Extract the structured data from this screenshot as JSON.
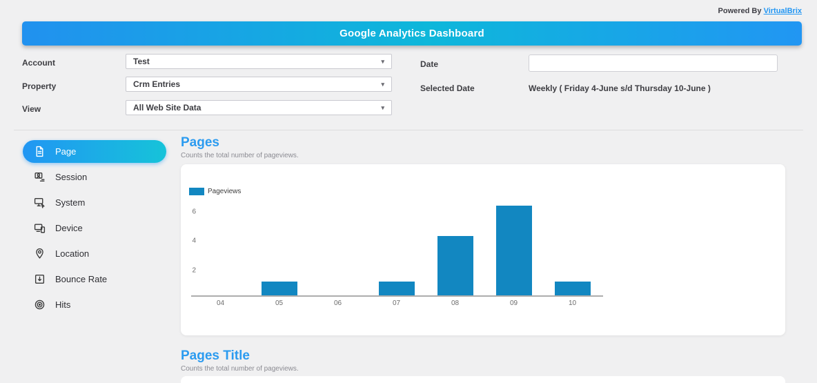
{
  "powered_by": {
    "prefix": "Powered By ",
    "brand": "VirtualBrix"
  },
  "header": {
    "title": "Google Analytics Dashboard"
  },
  "filters": {
    "account": {
      "label": "Account",
      "value": "Test"
    },
    "property": {
      "label": "Property",
      "value": "Crm Entries"
    },
    "view": {
      "label": "View",
      "value": "All Web Site Data"
    },
    "date": {
      "label": "Date",
      "value": ""
    },
    "selected_date": {
      "label": "Selected Date",
      "value": "Weekly ( Friday 4-June s/d Thursday 10-June )"
    }
  },
  "sidebar": {
    "items": [
      {
        "label": "Page",
        "icon": "page-icon",
        "active": true
      },
      {
        "label": "Session",
        "icon": "session-icon",
        "active": false
      },
      {
        "label": "System",
        "icon": "system-icon",
        "active": false
      },
      {
        "label": "Device",
        "icon": "device-icon",
        "active": false
      },
      {
        "label": "Location",
        "icon": "location-icon",
        "active": false
      },
      {
        "label": "Bounce Rate",
        "icon": "bounce-rate-icon",
        "active": false
      },
      {
        "label": "Hits",
        "icon": "hits-icon",
        "active": false
      }
    ]
  },
  "sections": [
    {
      "title": "Pages",
      "subtitle": "Counts the total number of pageviews."
    },
    {
      "title": "Pages Title",
      "subtitle": "Counts the total number of pageviews."
    }
  ],
  "chart_data": {
    "type": "bar",
    "title": "Pages",
    "series_name": "Pageviews",
    "categories": [
      "04",
      "05",
      "06",
      "07",
      "08",
      "09",
      "10"
    ],
    "values": [
      0,
      1,
      0,
      1,
      4,
      6,
      1
    ],
    "yticks": [
      2,
      4,
      6
    ],
    "ylim": [
      0,
      6.5
    ],
    "xlabel": "",
    "ylabel": "",
    "grid": false,
    "legend_position": "top-left",
    "bar_color": "#1287c1"
  },
  "colors": {
    "header_gradient_start": "#2191ef",
    "header_gradient_mid": "#0eb7da",
    "header_gradient_end": "#2196f3",
    "active_item_gradient_start": "#2196f3",
    "active_item_gradient_end": "#16c3d9",
    "heading_blue": "#2b9bf0",
    "bar_blue": "#1287c1",
    "link_blue": "#2196f3",
    "page_background": "#f0f0f1"
  }
}
